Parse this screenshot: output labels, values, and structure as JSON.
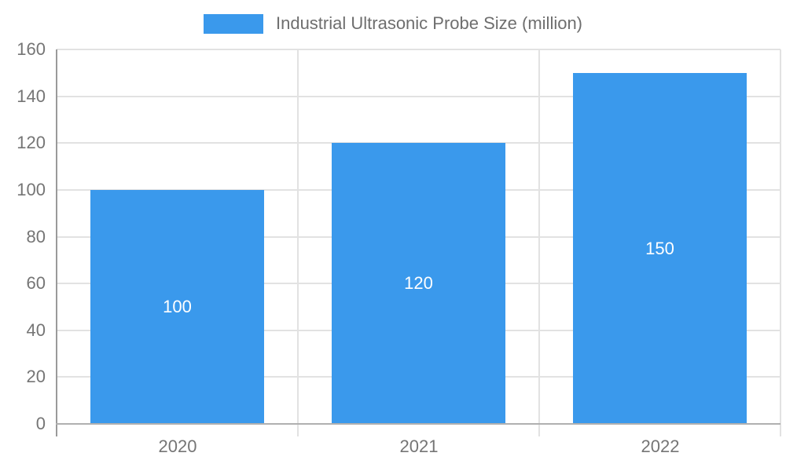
{
  "chart_data": {
    "type": "bar",
    "title": "Industrial Ultrasonic Probe Size (million)",
    "categories": [
      "2020",
      "2021",
      "2022"
    ],
    "series": [
      {
        "name": "Industrial Ultrasonic Probe Size (million)",
        "values": [
          100,
          120,
          150
        ]
      }
    ],
    "values": [
      100,
      120,
      150
    ],
    "data_labels": [
      "100",
      "120",
      "150"
    ],
    "xlabel": "",
    "ylabel": "",
    "ylim": [
      0,
      160
    ],
    "ytick_step": 20,
    "ytick_labels": [
      "0",
      "20",
      "40",
      "60",
      "80",
      "100",
      "120",
      "140",
      "160"
    ],
    "grid": true,
    "legend_position": "top",
    "colors": {
      "bar": "#3A99EC",
      "bar_label_text": "#FFFFFF",
      "axis_text": "#757575",
      "legend_text": "#6E6E6E",
      "gridline": "#E2E2E2",
      "y_axis_line": "#9A9A9A",
      "x_axis_line": "#B0B0B0",
      "background": "#FFFFFF"
    }
  }
}
